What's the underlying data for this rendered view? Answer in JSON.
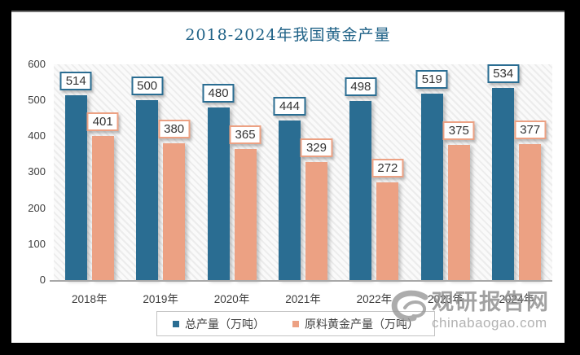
{
  "title": "2018-2024年我国黄金产量",
  "chart_data": {
    "type": "bar",
    "title": "2018-2024年我国黄金产量",
    "categories": [
      "2018年",
      "2019年",
      "2020年",
      "2021年",
      "2022年",
      "2023年",
      "2024年"
    ],
    "series": [
      {
        "name": "总产量（万吨）",
        "color": "#2A6D92",
        "values": [
          514,
          500,
          480,
          444,
          498,
          519,
          534
        ]
      },
      {
        "name": "原料黄金产量（万吨）",
        "color": "#ECA183",
        "values": [
          401,
          380,
          365,
          329,
          272,
          375,
          377
        ]
      }
    ],
    "xlabel": "",
    "ylabel": "",
    "ylim": [
      0,
      600
    ],
    "yticks": [
      0,
      100,
      200,
      300,
      400,
      500,
      600
    ],
    "grid": false,
    "legend_position": "bottom",
    "plot_background": "diagonal-hatch"
  },
  "watermark": {
    "logo_icon": "swoosh-logo",
    "site_name": "观研报告网",
    "site_domain": "chinabaogao.com"
  },
  "colors": {
    "title_text": "#1F6287",
    "axis_text": "#3D3D3D",
    "total_series": "#2A6D92",
    "raw_series": "#ECA183",
    "watermark_gray": "#8D8D8D"
  }
}
